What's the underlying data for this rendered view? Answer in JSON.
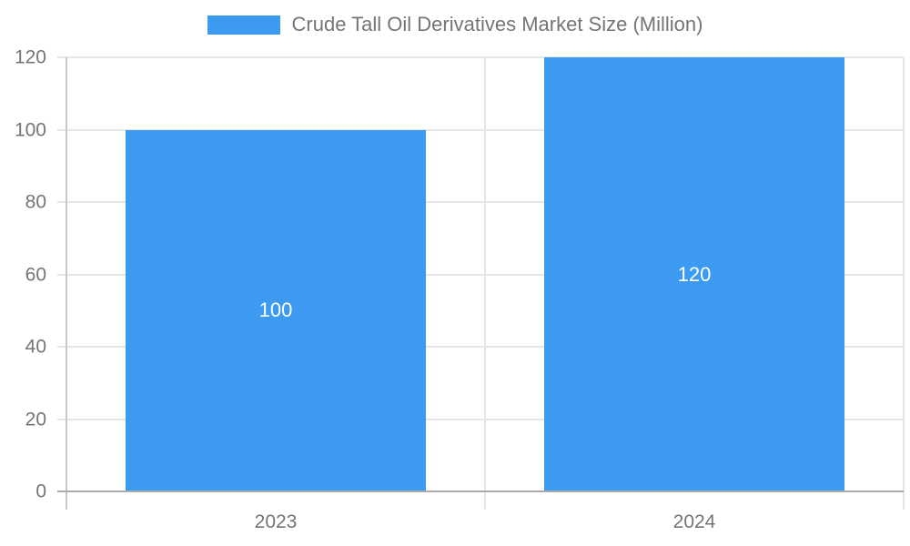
{
  "chart_data": {
    "type": "bar",
    "title": "Crude Tall Oil Derivatives Market Size (Million)",
    "legend": {
      "label": "Crude Tall Oil Derivatives Market Size (Million)",
      "position": "top"
    },
    "categories": [
      "2023",
      "2024"
    ],
    "series": [
      {
        "name": "Crude Tall Oil Derivatives Market Size (Million)",
        "values": [
          100,
          120
        ]
      }
    ],
    "value_labels": [
      "100",
      "120"
    ],
    "xlabel": "",
    "ylabel": "",
    "yticks": [
      0,
      20,
      40,
      60,
      80,
      100,
      120
    ],
    "ylim": [
      0,
      120
    ],
    "grid": true,
    "colors": {
      "bar": "#3c9af0",
      "value_label": "#ffffff",
      "axis_text": "#757575",
      "gridline": "#e6e6e6",
      "axis_line": "#c8c8c8",
      "baseline": "#ababab"
    }
  }
}
